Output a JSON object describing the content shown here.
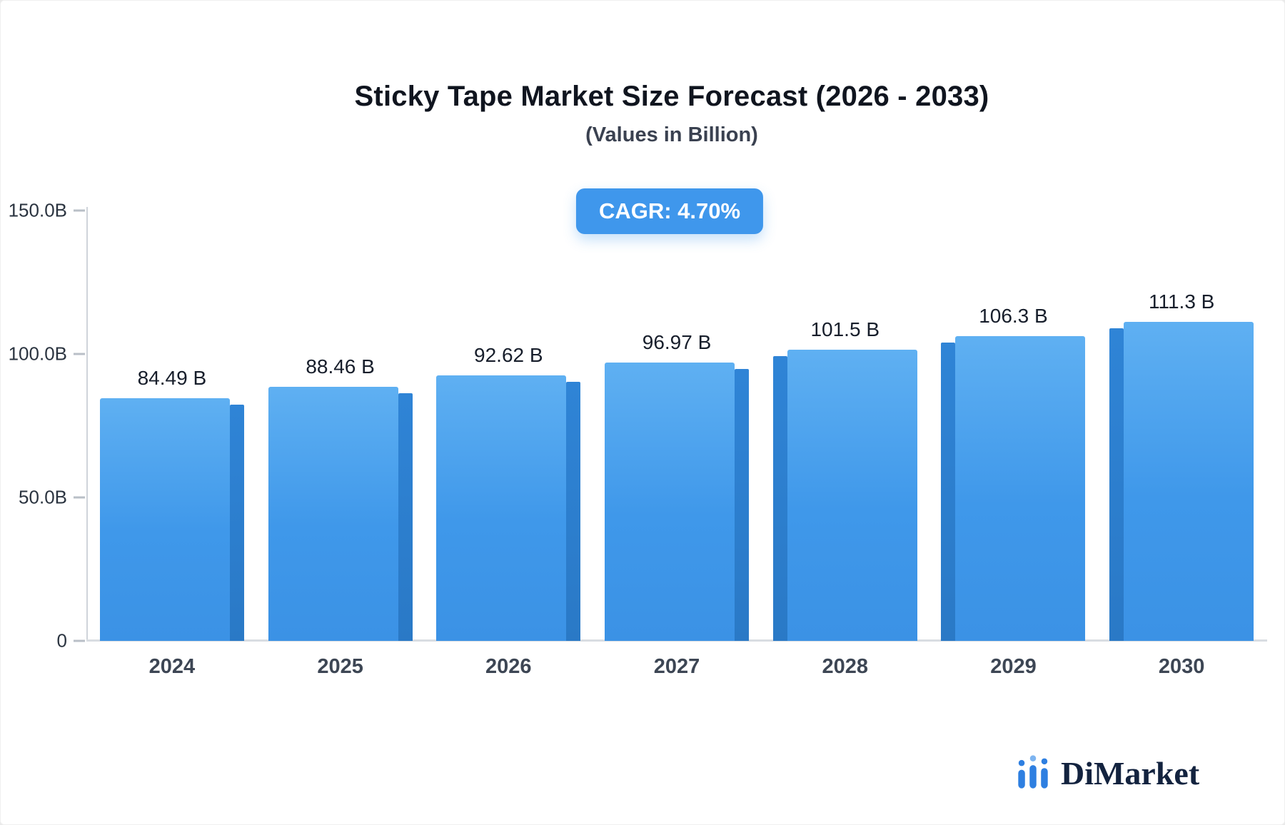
{
  "title": "Sticky Tape Market Size Forecast (2026 - 2033)",
  "subtitle": "(Values in Billion)",
  "badge": {
    "label": "CAGR: 4.70%"
  },
  "chart_data": {
    "type": "bar",
    "title": "Sticky Tape Market Size Forecast (2026 - 2033)",
    "subtitle": "(Values in Billion)",
    "categories": [
      "2024",
      "2025",
      "2026",
      "2027",
      "2028",
      "2029",
      "2030"
    ],
    "values": [
      84.49,
      88.46,
      92.62,
      96.97,
      101.5,
      106.3,
      111.3
    ],
    "value_labels": [
      "84.49 B",
      "88.46 B",
      "92.62 B",
      "96.97 B",
      "101.5 B",
      "106.3 B",
      "111.3 B"
    ],
    "xlabel": "",
    "ylabel": "",
    "ylim": [
      0,
      150
    ],
    "yticks": [
      {
        "value": 0,
        "label": "0"
      },
      {
        "value": 50,
        "label": "50.0B"
      },
      {
        "value": 100,
        "label": "100.0B"
      },
      {
        "value": 150,
        "label": "150.0B"
      }
    ],
    "grid": false,
    "legend": "none",
    "cagr": "4.70%",
    "colors": {
      "bar_top": "#5fb0f2",
      "bar_bottom": "#3b92e5",
      "bar_side": "#2a79c6",
      "badge": "#3f97ec",
      "axis": "#cfd4da"
    }
  },
  "logo": {
    "text": "DiMarket",
    "icon": "bar-chart-dots-icon",
    "color": "#13233f",
    "icon_color": "#2e7fe1"
  }
}
